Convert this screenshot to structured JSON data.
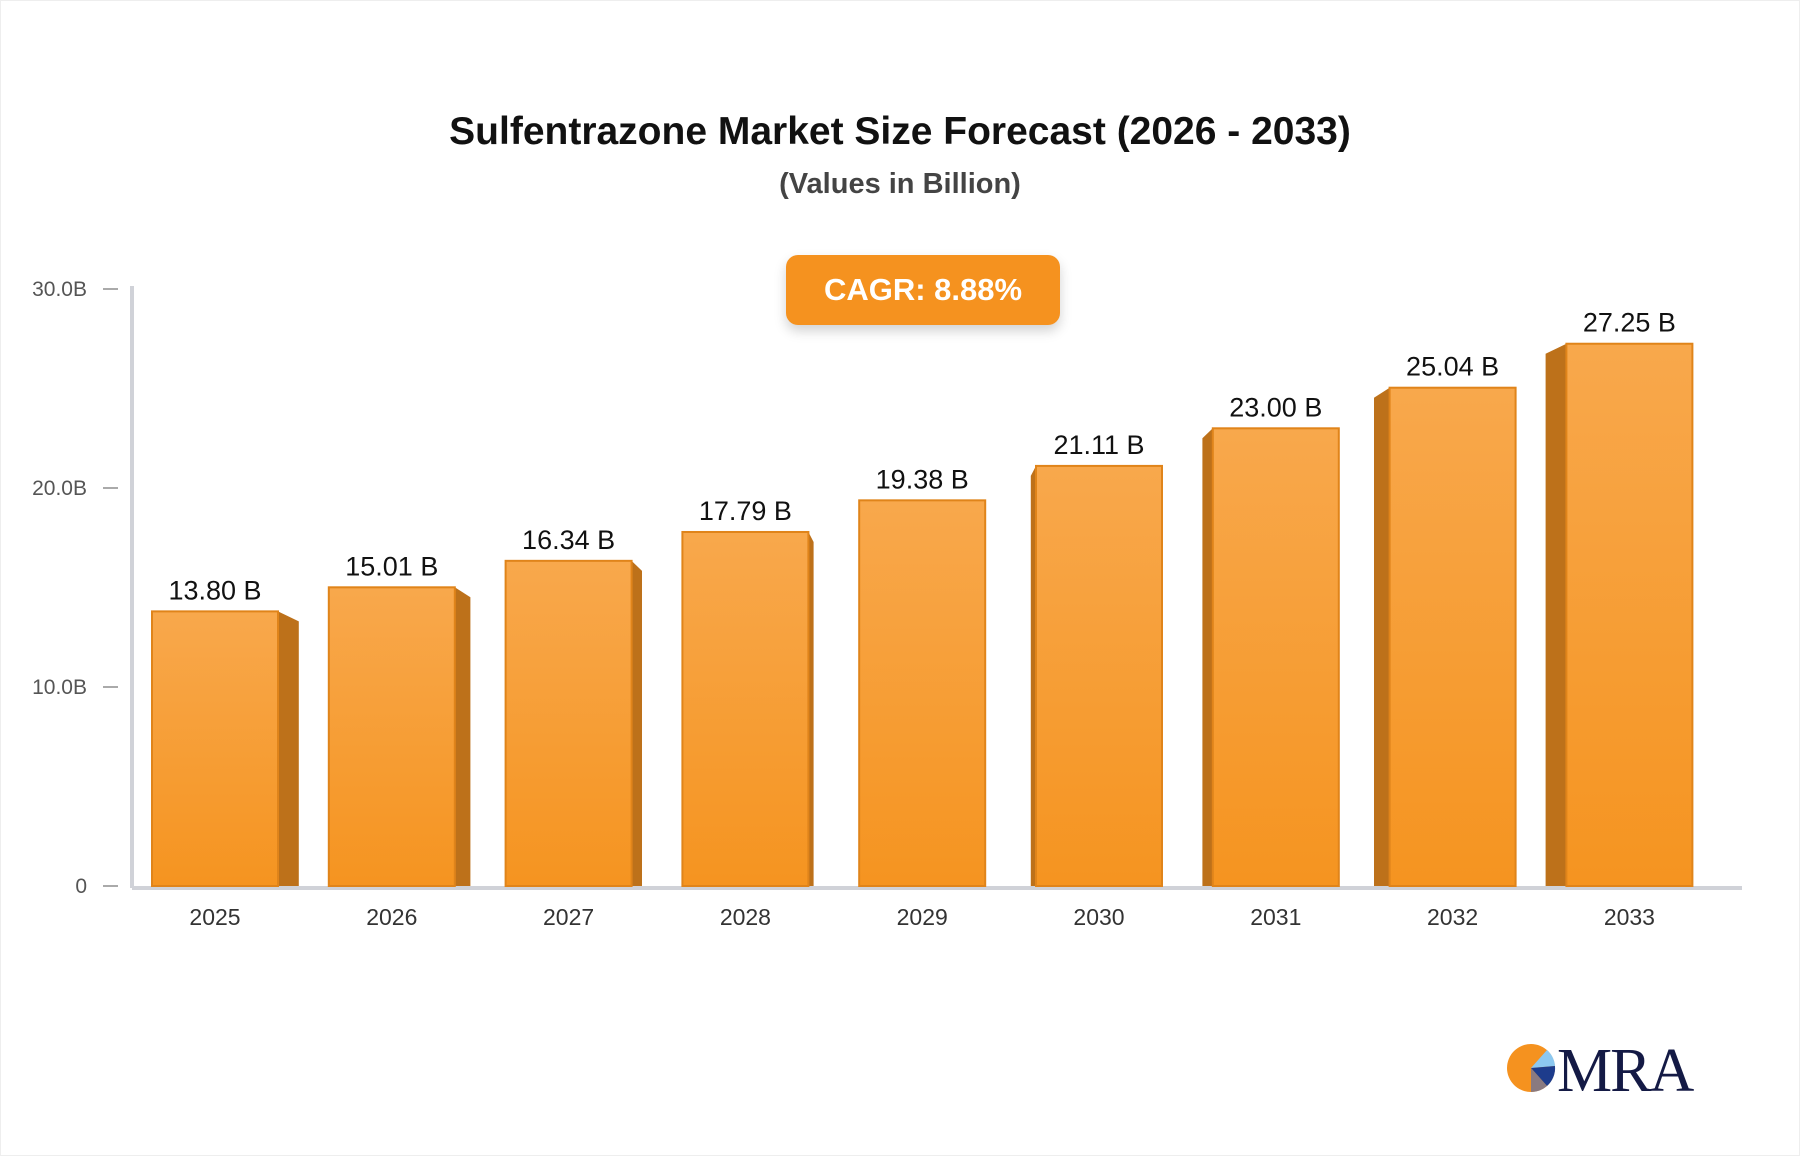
{
  "chart_data": {
    "type": "bar",
    "title": "Sulfentrazone Market Size Forecast (2026 - 2033)",
    "subtitle": "(Values in Billion)",
    "annotation": "CAGR: 8.88%",
    "categories": [
      "2025",
      "2026",
      "2027",
      "2028",
      "2029",
      "2030",
      "2031",
      "2032",
      "2033"
    ],
    "values": [
      13.8,
      15.01,
      16.34,
      17.79,
      19.38,
      21.11,
      23.0,
      25.04,
      27.25
    ],
    "data_labels": [
      "13.80 B",
      "15.01 B",
      "16.34 B",
      "17.79 B",
      "19.38 B",
      "21.11 B",
      "23.00 B",
      "25.04 B",
      "27.25 B"
    ],
    "yticks": [
      0,
      10,
      20,
      30
    ],
    "ytick_labels": [
      "0",
      "10.0B",
      "20.0B",
      "30.0B"
    ],
    "ylim": [
      0,
      30
    ],
    "xlabel": "",
    "ylabel": "",
    "grid": false,
    "bar_color": "#f5951f",
    "side_color": "#bd711a"
  },
  "logo": {
    "text": "MRA"
  }
}
